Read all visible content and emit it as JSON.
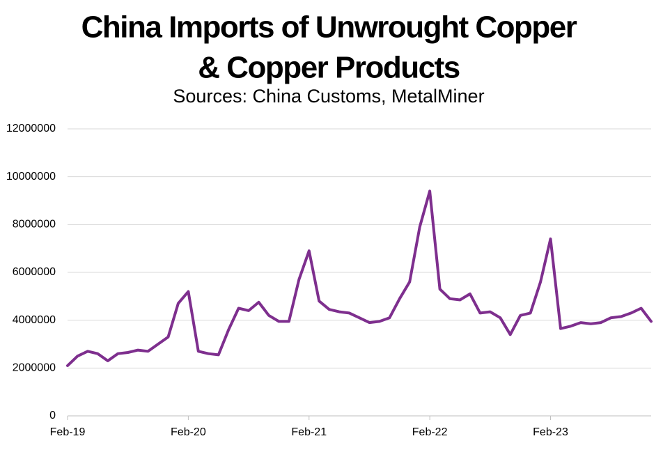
{
  "chart_data": {
    "type": "line",
    "title": [
      "China Imports of Unwrought Copper",
      "& Copper Products"
    ],
    "subtitle": "Sources: China Customs, MetalMiner",
    "categories": [
      "Feb-19",
      null,
      null,
      null,
      null,
      null,
      null,
      null,
      null,
      null,
      null,
      null,
      "Feb-20",
      null,
      null,
      null,
      null,
      null,
      null,
      null,
      null,
      null,
      null,
      null,
      "Feb-21",
      null,
      null,
      null,
      null,
      null,
      null,
      null,
      null,
      null,
      null,
      null,
      "Feb-22",
      null,
      null,
      null,
      null,
      null,
      null,
      null,
      null,
      null,
      null,
      null,
      "Feb-23",
      null,
      null,
      null,
      null,
      null,
      null,
      null,
      null,
      null,
      null
    ],
    "series": [
      {
        "name": "China Imports",
        "color": "#7e2f8e",
        "values": [
          2100000,
          2500000,
          2700000,
          2600000,
          2300000,
          2600000,
          2650000,
          2750000,
          2700000,
          3000000,
          3300000,
          4700000,
          5200000,
          2700000,
          2600000,
          2550000,
          3600000,
          4500000,
          4400000,
          4750000,
          4200000,
          3950000,
          3950000,
          5700000,
          6900000,
          4800000,
          4450000,
          4350000,
          4300000,
          4100000,
          3900000,
          3950000,
          4100000,
          4900000,
          5600000,
          7900000,
          9400000,
          5300000,
          4900000,
          4850000,
          5100000,
          4300000,
          4350000,
          4100000,
          3400000,
          4200000,
          4300000,
          5600000,
          7400000,
          3650000,
          3750000,
          3900000,
          3850000,
          3900000,
          4100000,
          4150000,
          4300000,
          4500000,
          3950000
        ]
      }
    ],
    "ylim": [
      0,
      12000000
    ],
    "yticks": [
      0,
      2000000,
      4000000,
      6000000,
      8000000,
      10000000,
      12000000
    ],
    "grid": true
  }
}
